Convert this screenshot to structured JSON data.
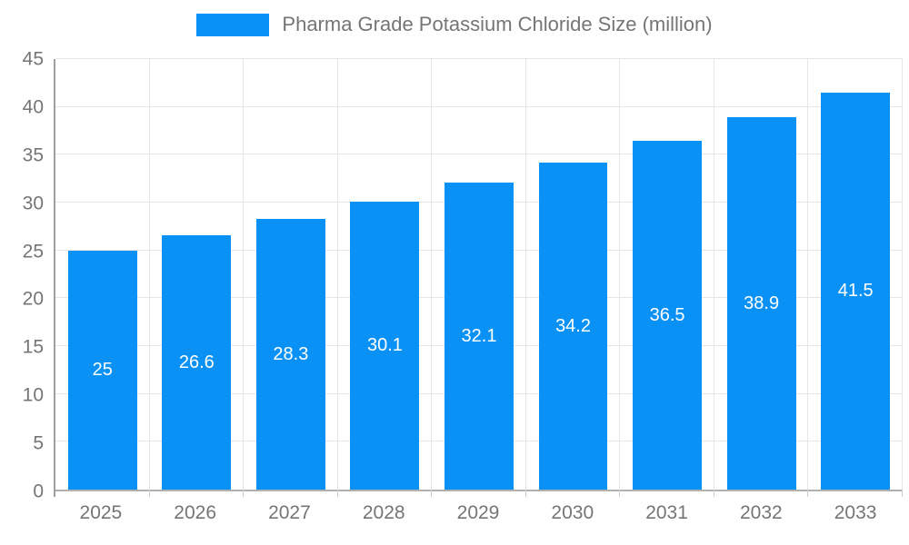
{
  "chart_data": {
    "type": "bar",
    "title": "Pharma Grade Potassium Chloride Size (million)",
    "legend": {
      "label": "Pharma Grade Potassium Chloride Size (million)",
      "position": "top"
    },
    "categories": [
      "2025",
      "2026",
      "2027",
      "2028",
      "2029",
      "2030",
      "2031",
      "2032",
      "2033"
    ],
    "series": [
      {
        "name": "Pharma Grade Potassium Chloride Size (million)",
        "values": [
          25,
          26.6,
          28.3,
          30.1,
          32.1,
          34.2,
          36.5,
          38.9,
          41.5
        ],
        "value_labels": [
          "25",
          "26.6",
          "28.3",
          "30.1",
          "32.1",
          "34.2",
          "36.5",
          "38.9",
          "41.5"
        ]
      }
    ],
    "xlabel": "",
    "ylabel": "",
    "ylim": [
      0,
      45
    ],
    "yticks": [
      0,
      5,
      10,
      15,
      20,
      25,
      30,
      35,
      40,
      45
    ],
    "grid": true,
    "value_labels_inside_bars": true,
    "colors": {
      "bar": "#0a91f5",
      "grid": "#e6e6e6",
      "axis": "#b0b0b0",
      "y_axis": "#9e9e9e",
      "tick": "#cccccc",
      "text": "#757575",
      "value_label": "#ffffff",
      "background": "#ffffff"
    }
  }
}
